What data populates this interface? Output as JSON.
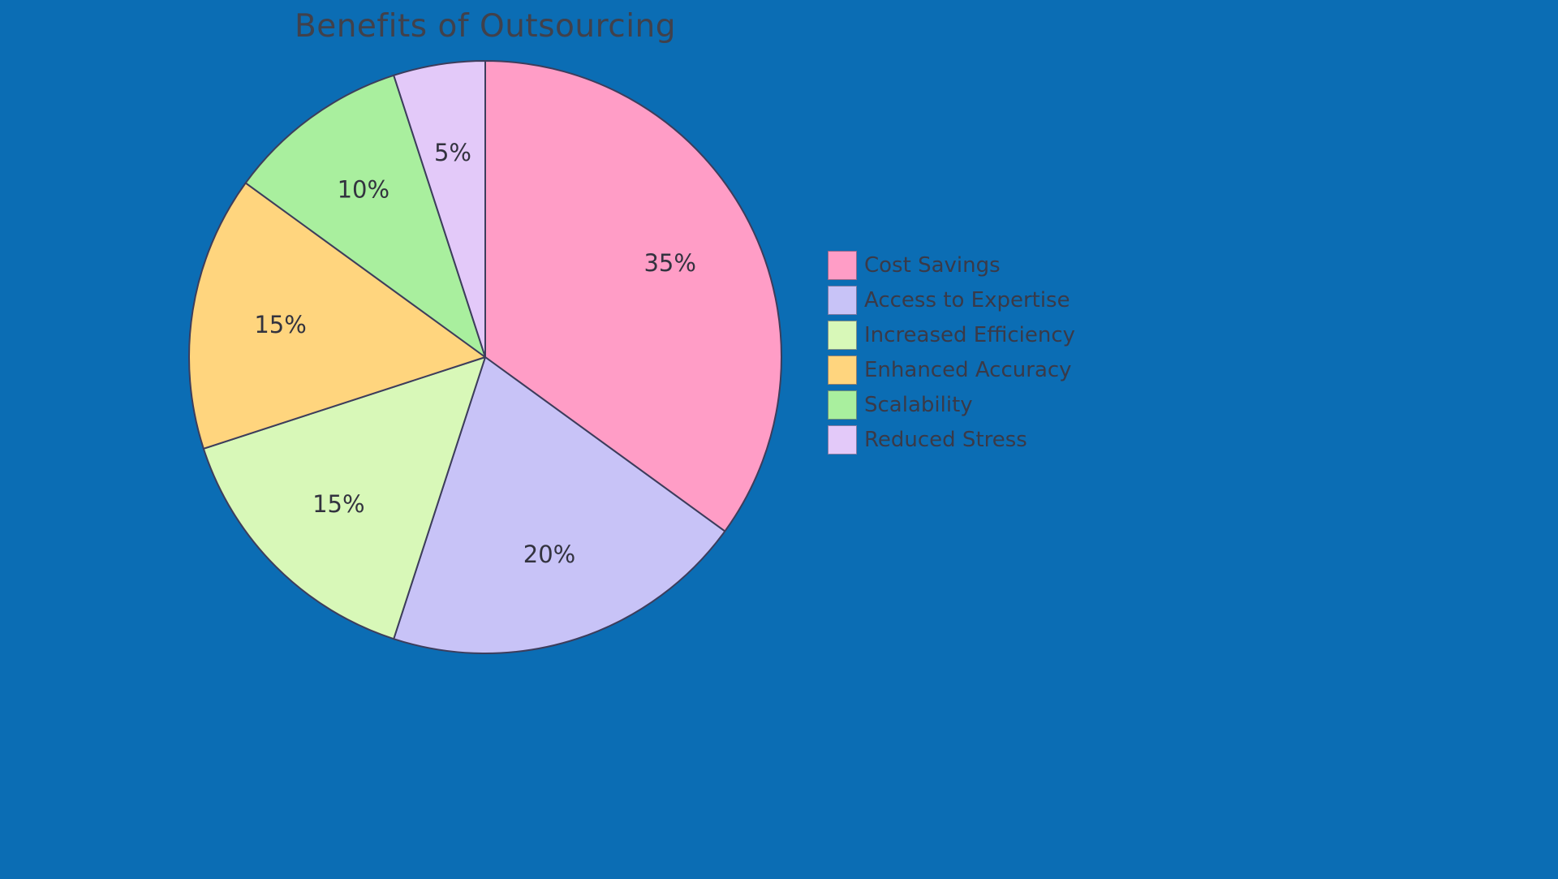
{
  "page": {
    "background_color": "#0b6db4"
  },
  "chart_data": {
    "type": "pie",
    "title": "Benefits of Outsourcing",
    "title_color": "#41414b",
    "labels": [
      "Cost Savings",
      "Access to Expertise",
      "Increased Efficiency",
      "Enhanced Accuracy",
      "Scalability",
      "Reduced Stress"
    ],
    "values": [
      35,
      20,
      15,
      15,
      10,
      5
    ],
    "percent_labels": [
      "35%",
      "20%",
      "15%",
      "15%",
      "10%",
      "5%"
    ],
    "colors": [
      "#ff9dc6",
      "#c8c3f7",
      "#d8f8b8",
      "#ffd57e",
      "#a9ef9e",
      "#e3c9f9"
    ],
    "stroke_color": "#3d3d5c",
    "percent_label_color": "#33333f",
    "legend_text_color": "#3a3a48",
    "legend_position": "right",
    "start_angle_deg": 0,
    "direction": "clockwise"
  }
}
